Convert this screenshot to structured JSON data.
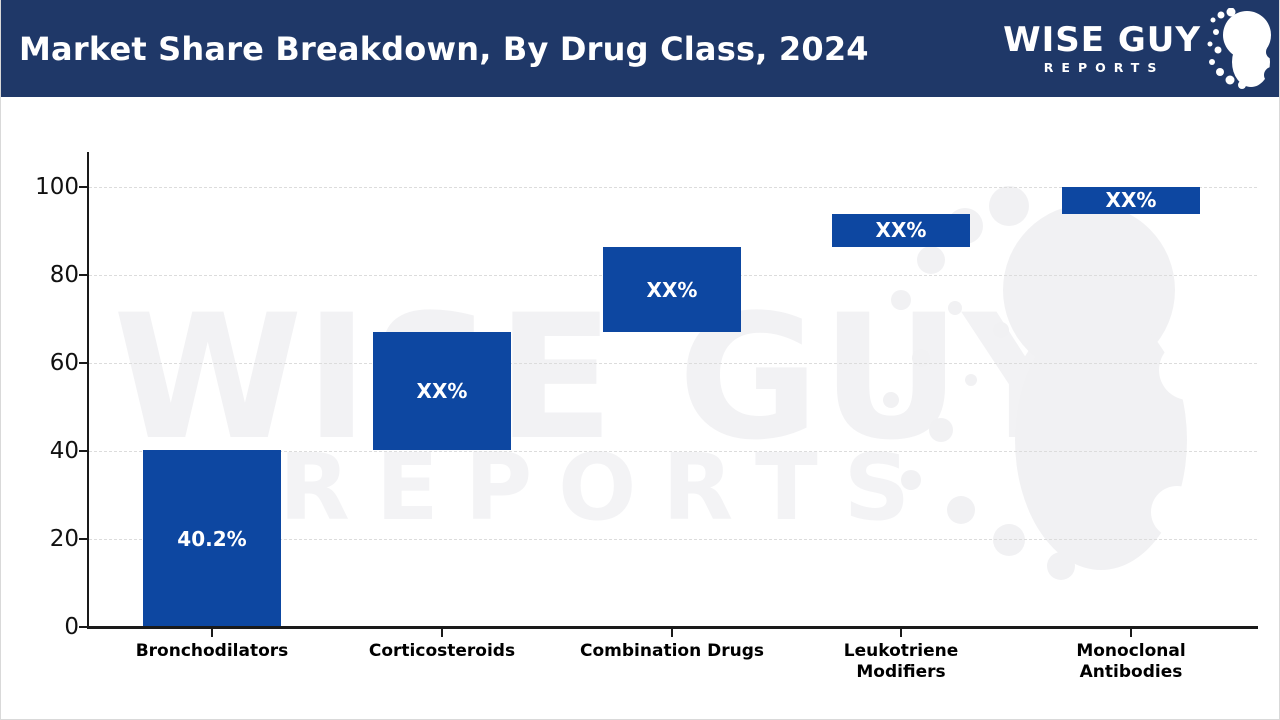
{
  "header": {
    "title": "Market Share Breakdown, By Drug Class, 2024",
    "logo": {
      "wordmark": "WISE GUY",
      "subtitle": "REPORTS"
    }
  },
  "watermark": {
    "wordmark": "WISE GUY",
    "subtitle": "REPORTS"
  },
  "colors": {
    "header_bg": "#1f3868",
    "bar": "#0d47a1",
    "bar_label": "#ffffff",
    "grid": "#dcdcdc",
    "axis": "#1a1a1a",
    "watermark": "#f2f2f4"
  },
  "chart_data": {
    "type": "bar",
    "subtype": "waterfall",
    "title": "Market Share Breakdown, By Drug Class, 2024",
    "xlabel": "",
    "ylabel": "",
    "ylim": [
      0,
      105
    ],
    "yticks": [
      0,
      20,
      40,
      60,
      80,
      100
    ],
    "grid": "horizontal-dashed",
    "legend": "none",
    "categories": [
      "Bronchodilators",
      "Corticosteroids",
      "Combination Drugs",
      "Leukotriene\nModifiers",
      "Monoclonal\nAntibodies"
    ],
    "segments": [
      {
        "category": "Bronchodilators",
        "start": 0,
        "end": 40.2,
        "label": "40.2%"
      },
      {
        "category": "Corticosteroids",
        "start": 40.2,
        "end": 67.0,
        "label": "XX%"
      },
      {
        "category": "Combination Drugs",
        "start": 67.0,
        "end": 86.4,
        "label": "XX%"
      },
      {
        "category": "Leukotriene Modifiers",
        "start": 86.4,
        "end": 93.9,
        "label": "XX%"
      },
      {
        "category": "Monoclonal Antibodies",
        "start": 93.9,
        "end": 100.0,
        "label": "XX%"
      }
    ]
  }
}
